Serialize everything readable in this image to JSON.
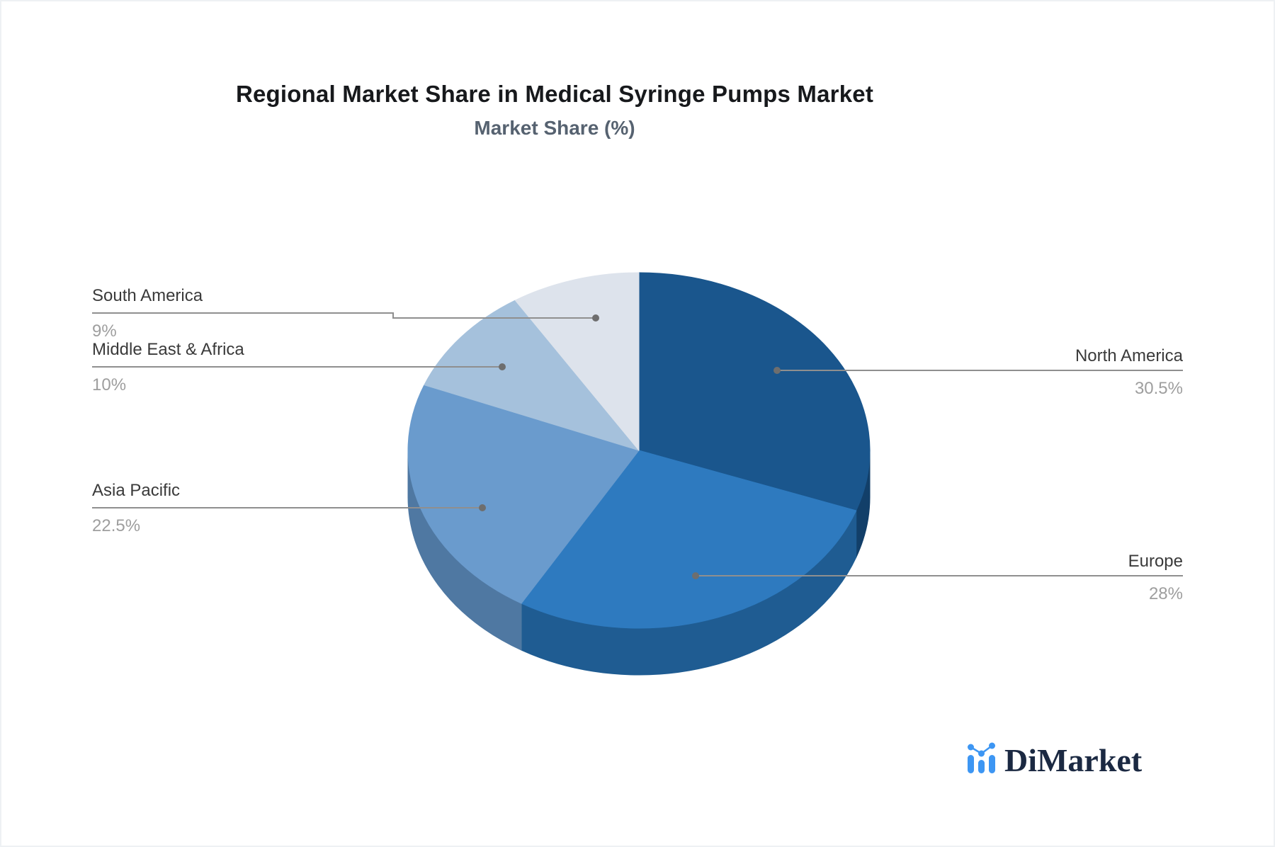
{
  "header": {
    "title": "Regional Market Share in Medical Syringe Pumps Market",
    "subtitle": "Market Share (%)"
  },
  "chart_data": {
    "type": "pie",
    "title": "Regional Market Share in Medical Syringe Pumps Market",
    "subtitle": "Market Share (%)",
    "unit": "%",
    "effect": "3d",
    "start_angle_deg": 0,
    "direction": "clockwise",
    "legend_position": "callout-labels",
    "segments": [
      {
        "label": "North America",
        "value": 30.5,
        "display_value": "30.5%",
        "color": "#1a568d",
        "side_color": "#123f69"
      },
      {
        "label": "Europe",
        "value": 28,
        "display_value": "28%",
        "color": "#2e7abf",
        "side_color": "#1f5c92"
      },
      {
        "label": "Asia Pacific",
        "value": 22.5,
        "display_value": "22.5%",
        "color": "#6a9bcd",
        "side_color": "#4f78a2"
      },
      {
        "label": "Middle East & Africa",
        "value": 10,
        "display_value": "10%",
        "color": "#a5c1dc",
        "side_color": "#7e95ad"
      },
      {
        "label": "South America",
        "value": 9,
        "display_value": "9%",
        "color": "#dde3ec",
        "side_color": "#aab3c1"
      }
    ]
  },
  "branding": {
    "logo_text": "DiMarket",
    "logo_icon": "bar-chart-icon",
    "icon_color": "#3d96f3",
    "text_color": "#1b2942"
  },
  "colors": {
    "title": "#17191c",
    "subtitle": "#566270",
    "label_text": "#3a3a3a",
    "value_text": "#9e9e9e",
    "leader_line": "#8f8f8f",
    "leader_dot": "#6e6e6e",
    "page_border": "#eef1f4"
  }
}
